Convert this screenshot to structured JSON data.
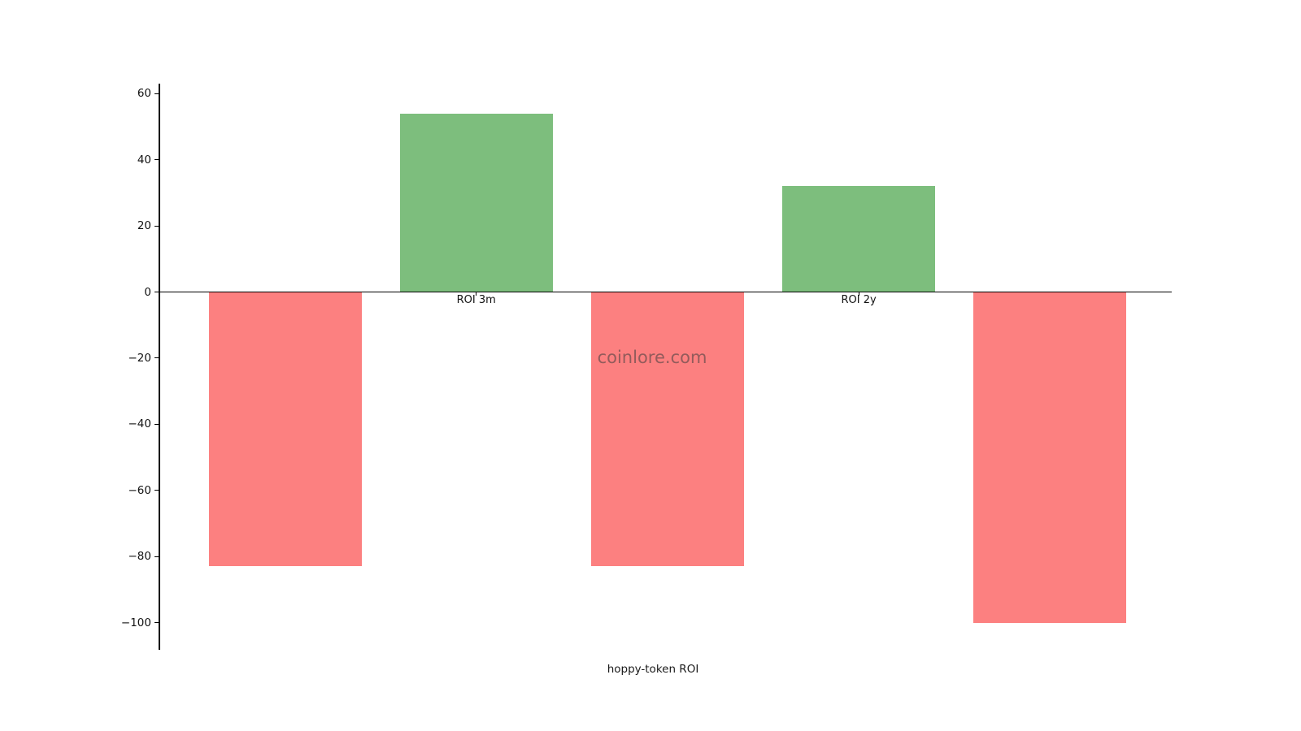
{
  "page": {
    "background_color": "#ffffff"
  },
  "watermark": {
    "text": "coinlore.com"
  },
  "chart_data": {
    "type": "bar",
    "title": "",
    "xlabel": "hoppy-token ROI",
    "ylabel": "",
    "categories": [
      "",
      "ROI 3m",
      "",
      "ROI 2y",
      ""
    ],
    "values": [
      -83,
      54,
      -83,
      32,
      -100
    ],
    "yticks": [
      60,
      40,
      20,
      0,
      -20,
      -40,
      -60,
      -80,
      -100
    ],
    "ylim": [
      -108,
      63
    ],
    "positive_color": "#7dbe7d",
    "negative_color": "#fc8080",
    "axis_color": "#000000",
    "grid": false,
    "legend": "none",
    "bar_width_frac": 0.8,
    "x_axis_position": "zero"
  }
}
